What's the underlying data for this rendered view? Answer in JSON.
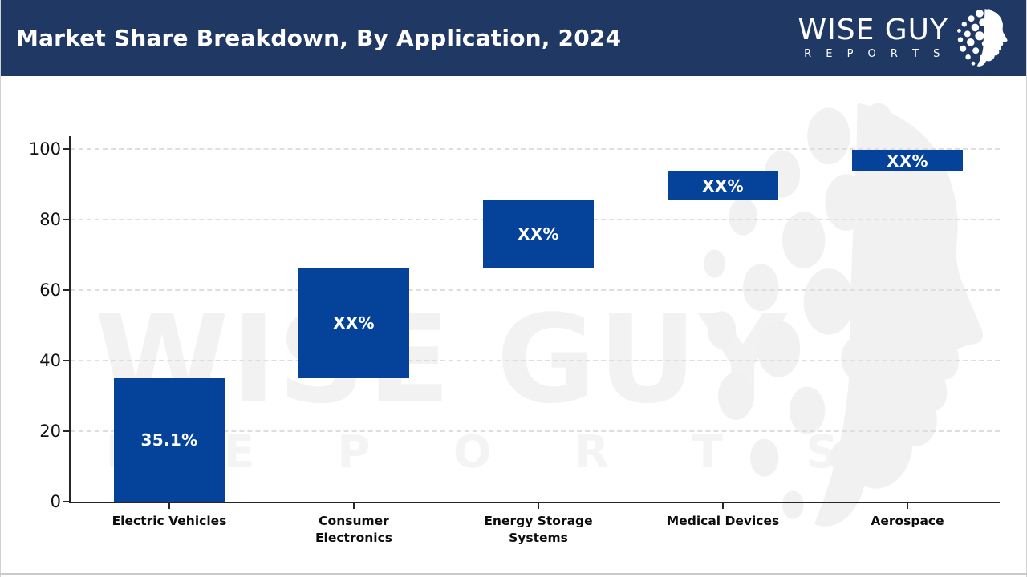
{
  "header": {
    "title": "Market Share Breakdown, By Application, 2024",
    "bg_color": "#1f3864",
    "logo": {
      "line1": "WISE GUY",
      "line2": "R E P O R T S"
    }
  },
  "watermark": {
    "line1": "WISE GUY",
    "line2": "R E P O R T S"
  },
  "chart_data": {
    "type": "bar",
    "variant": "waterfall",
    "title": "Market Share Breakdown, By Application, 2024",
    "categories": [
      "Electric Vehicles",
      "Consumer Electronics",
      "Energy Storage Systems",
      "Medical Devices",
      "Aerospace"
    ],
    "category_label_lines": [
      [
        "Electric Vehicles"
      ],
      [
        "Consumer",
        "Electronics"
      ],
      [
        "Energy Storage",
        "Systems"
      ],
      [
        "Medical Devices"
      ],
      [
        "Aerospace"
      ]
    ],
    "segments": [
      {
        "category": "Electric Vehicles",
        "start": 0,
        "end": 35.1,
        "label": "35.1%"
      },
      {
        "category": "Consumer Electronics",
        "start": 35.1,
        "end": 66.1,
        "label": "XX%"
      },
      {
        "category": "Energy Storage Systems",
        "start": 66.1,
        "end": 85.7,
        "label": "XX%"
      },
      {
        "category": "Medical Devices",
        "start": 85.7,
        "end": 93.6,
        "label": "XX%"
      },
      {
        "category": "Aerospace",
        "start": 93.6,
        "end": 99.8,
        "label": "XX%"
      }
    ],
    "yticks": [
      0,
      20,
      40,
      60,
      80,
      100
    ],
    "ylim": [
      0,
      104
    ],
    "xlabel": "",
    "ylabel": "",
    "grid": "horizontal-dashed",
    "legend": "none",
    "colors": {
      "bar": "#05429a",
      "bar_label": "#ffffff",
      "grid": "#dedede",
      "axis": "#262626",
      "header_bg": "#1f3864",
      "watermark": "#f2f2f2"
    }
  }
}
